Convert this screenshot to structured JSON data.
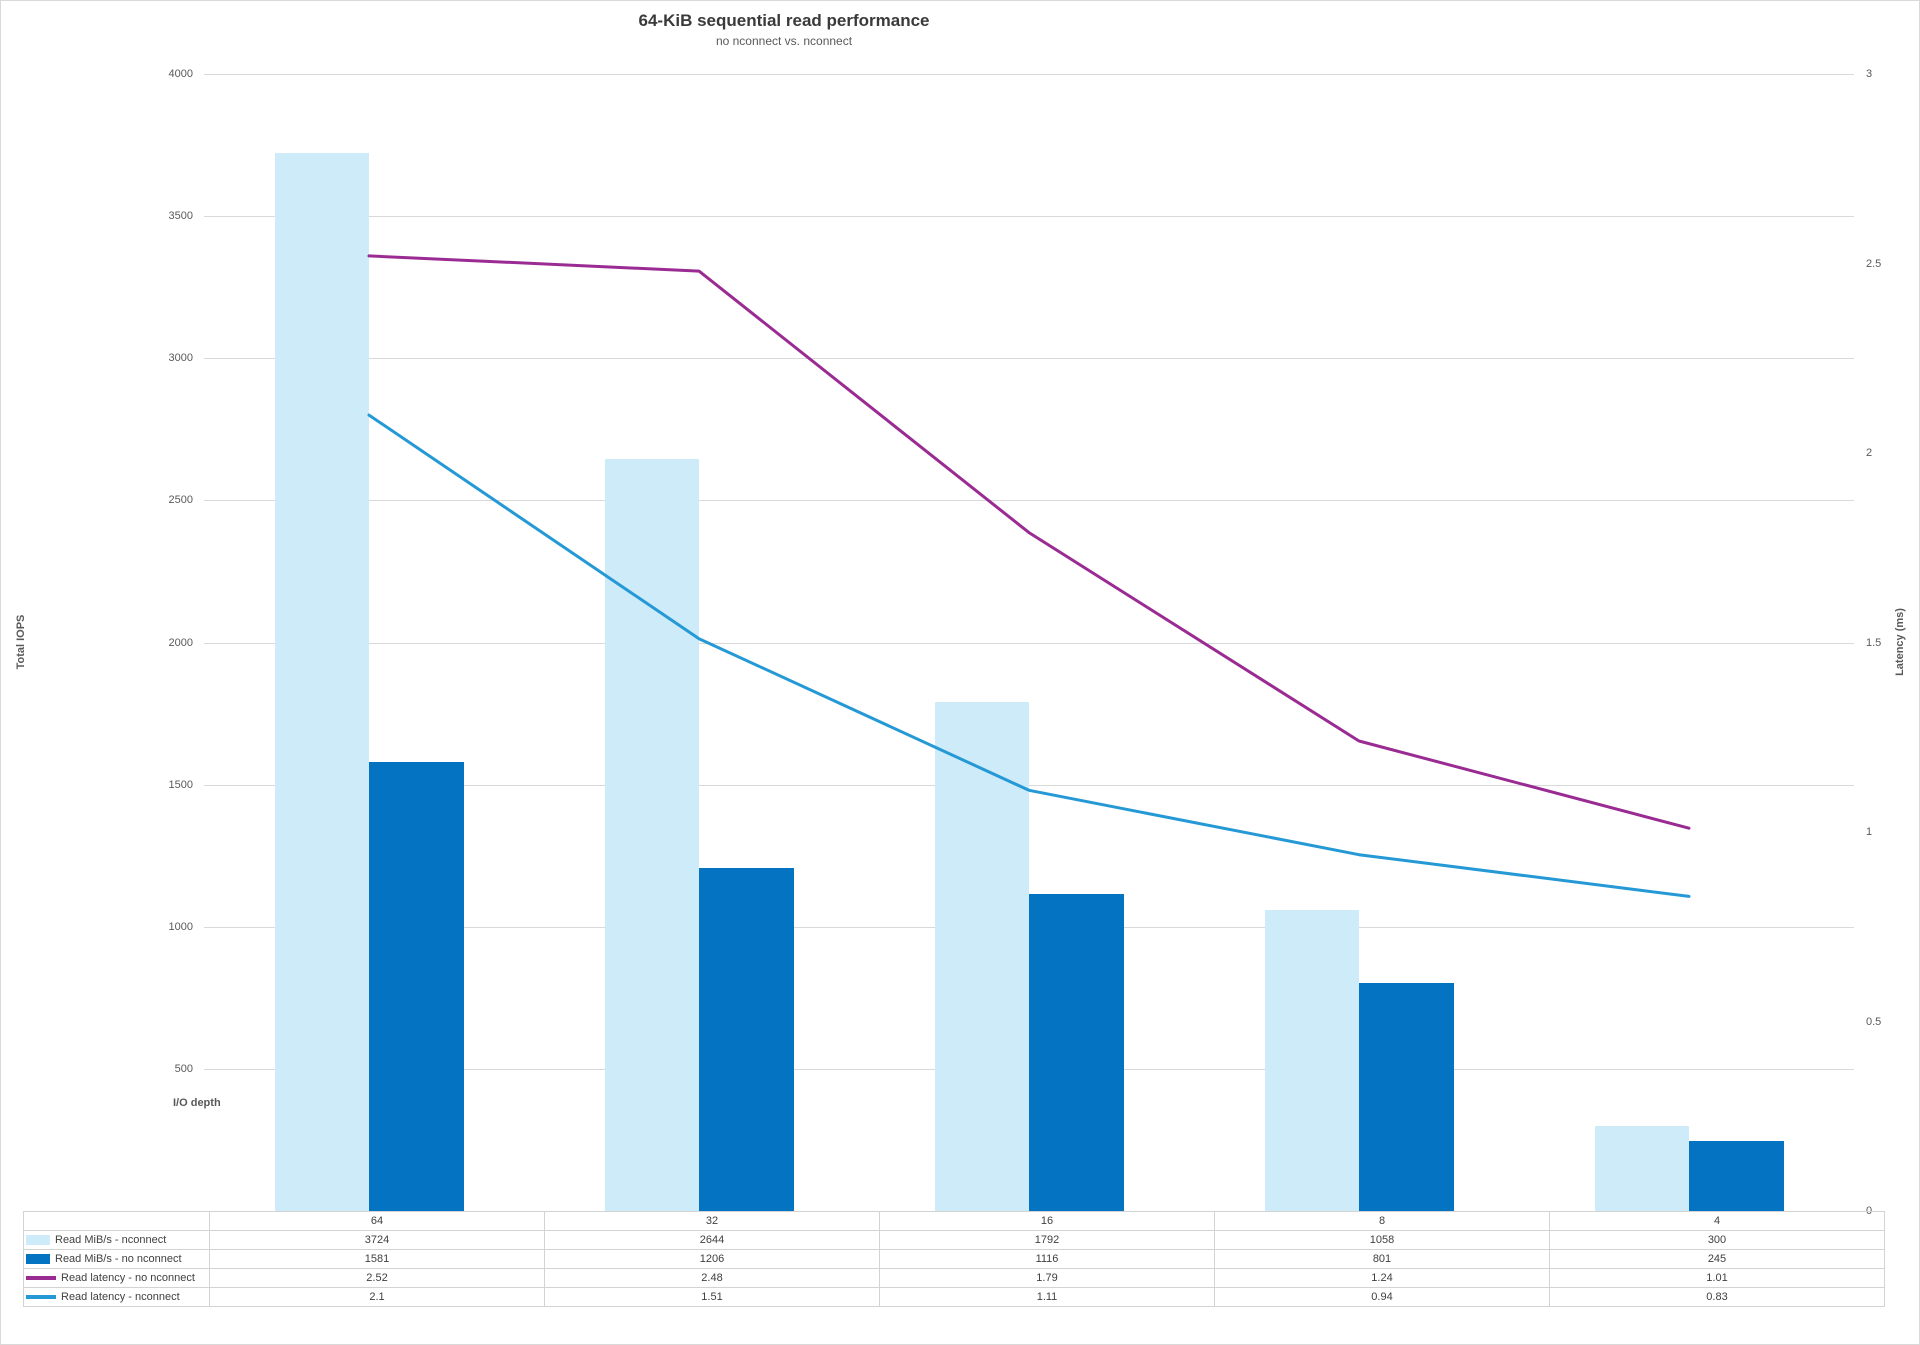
{
  "title": "64-KiB sequential read performance",
  "subtitle": "no nconnect vs. nconnect",
  "colors": {
    "bar_nconnect": "#CDEBF9",
    "bar_no_nconnect": "#0473C2",
    "line_no_nconnect": "#9A2B93",
    "line_nconnect": "#2499D6",
    "gridline": "#D9D9D9",
    "axis_text": "#595959",
    "table_text": "#404040"
  },
  "chart_data": {
    "type": "combo",
    "categories": [
      "64",
      "32",
      "16",
      "8",
      "4"
    ],
    "series": [
      {
        "name": "Read MiB/s - nconnect",
        "kind": "bar",
        "axis": "left",
        "color": "#CDEBF9",
        "values": [
          3724,
          2644,
          1792,
          1058,
          300
        ]
      },
      {
        "name": "Read MiB/s - no nconnect",
        "kind": "bar",
        "axis": "left",
        "color": "#0473C2",
        "values": [
          1581,
          1206,
          1116,
          801,
          245
        ]
      },
      {
        "name": "Read latency - no nconnect",
        "kind": "line",
        "axis": "right",
        "color": "#9A2B93",
        "values": [
          2.52,
          2.48,
          1.79,
          1.24,
          1.01
        ]
      },
      {
        "name": "Read latency - nconnect",
        "kind": "line",
        "axis": "right",
        "color": "#2499D6",
        "values": [
          2.1,
          1.51,
          1.11,
          0.94,
          0.83
        ]
      }
    ],
    "left_axis": {
      "title": "Total IOPS",
      "min": 0,
      "max": 4000,
      "step": 500,
      "tick_labels": [
        "4000",
        "3500",
        "3000",
        "2500",
        "2000",
        "1500",
        "1000",
        "500"
      ]
    },
    "right_axis": {
      "title": "Latency (ms)",
      "min": 0,
      "max": 3,
      "step": 0.5,
      "tick_labels": [
        "3",
        "2.5",
        "2",
        "1.5",
        "1",
        "0.5",
        "0"
      ]
    },
    "x_axis": {
      "title": "I/O depth"
    },
    "grid": true,
    "legend_position": "data-table-left-column"
  }
}
